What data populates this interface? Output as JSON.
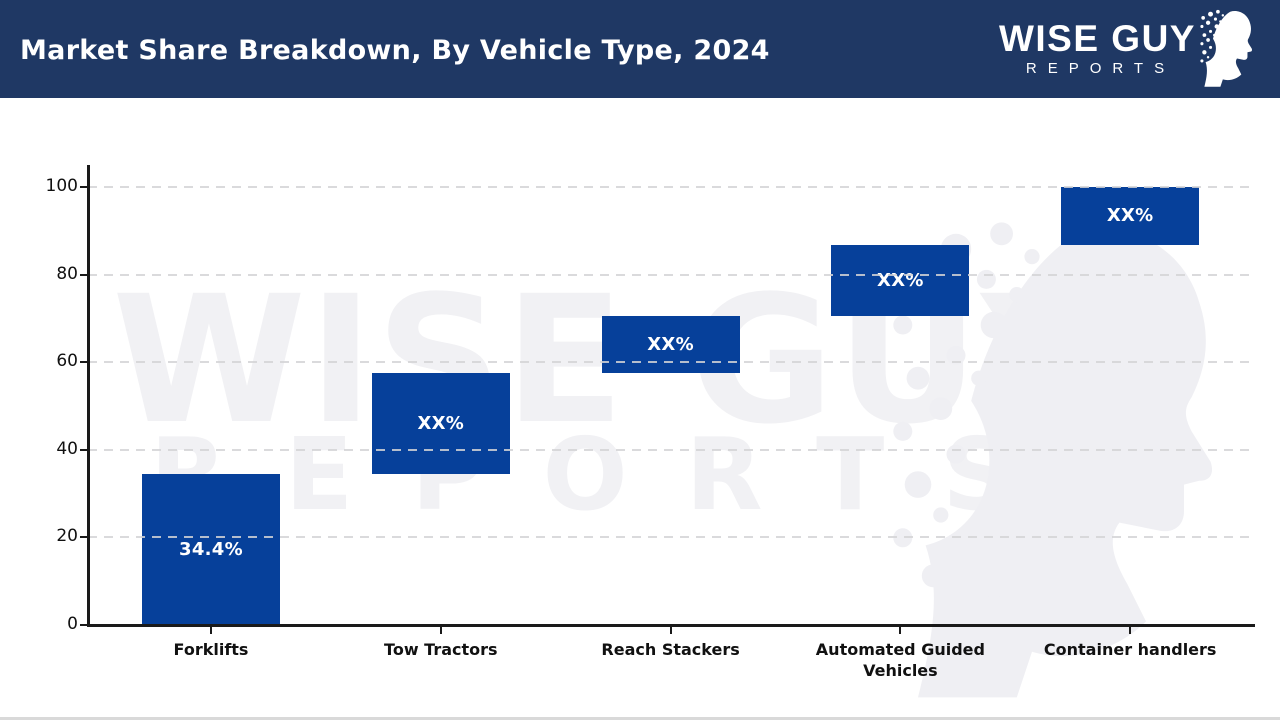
{
  "header": {
    "title": "Market Share Breakdown, By Vehicle Type, 2024",
    "logo": {
      "line1": "WISE GUY",
      "line2": "REPORTS"
    }
  },
  "watermark": {
    "line1": "WISE GUY",
    "line2": "REPORTS"
  },
  "colors": {
    "header_bg": "#1F3864",
    "bar": "#06409A",
    "grid": "#D4D4D6",
    "axis": "#1A1A1A",
    "watermark": "#F1F1F4",
    "label_text": "#FFFFFF"
  },
  "chart_data": {
    "type": "bar",
    "subtype": "waterfall",
    "title": "Market Share Breakdown, By Vehicle Type, 2024",
    "categories": [
      "Forklifts",
      "Tow Tractors",
      "Reach Stackers",
      "Automated Guided Vehicles",
      "Container handlers"
    ],
    "segments": [
      {
        "category": "Forklifts",
        "start": 0,
        "end": 34.4,
        "label": "34.4%"
      },
      {
        "category": "Tow Tractors",
        "start": 34.4,
        "end": 57.5,
        "label": "XX%"
      },
      {
        "category": "Reach Stackers",
        "start": 57.5,
        "end": 70.5,
        "label": "XX%"
      },
      {
        "category": "Automated Guided Vehicles",
        "start": 70.5,
        "end": 86.8,
        "label": "XX%"
      },
      {
        "category": "Container handlers",
        "start": 86.8,
        "end": 100,
        "label": "XX%"
      }
    ],
    "ylim": [
      0,
      100
    ],
    "yticks": [
      0,
      20,
      40,
      60,
      80,
      100
    ],
    "xlabel": "",
    "ylabel": "",
    "grid": "horizontal-dashed",
    "legend": "none"
  }
}
